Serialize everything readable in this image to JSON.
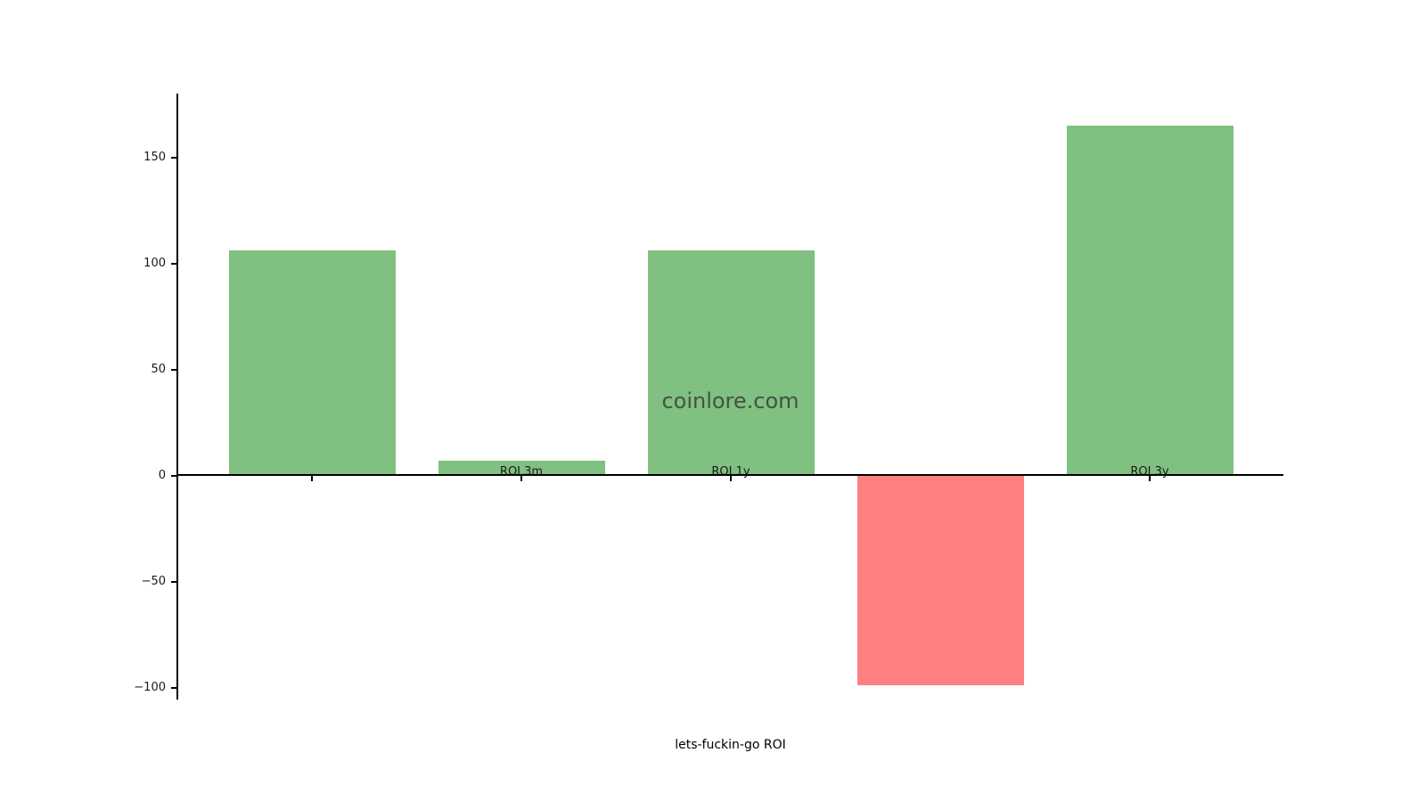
{
  "chart_data": {
    "type": "bar",
    "title": "lets-fuckin-go ROI",
    "watermark": "coinlore.com",
    "categories": [
      "",
      "ROI 3m",
      "ROI 1y",
      "",
      "ROI 3y"
    ],
    "values": [
      106,
      7,
      106,
      -99,
      165
    ],
    "bar_colors": [
      "#80c080",
      "#80c080",
      "#80c080",
      "#ff8080",
      "#80c080"
    ],
    "positive_color": "#80c080",
    "negative_color": "#ff8080",
    "xlabel": "",
    "ylabel": "",
    "yticks": [
      150,
      100,
      50,
      0,
      -50,
      -100
    ],
    "ytick_labels": [
      "150",
      "100",
      "50",
      "0",
      "−50",
      "−100"
    ],
    "ylim": [
      -105,
      180
    ],
    "grid": false,
    "legend_position": "none",
    "axis_color": "#000000",
    "tick_label_color": "#1a1a1a",
    "title_color": "#000000",
    "watermark_color": "#333333",
    "background_color": "#ffffff"
  }
}
